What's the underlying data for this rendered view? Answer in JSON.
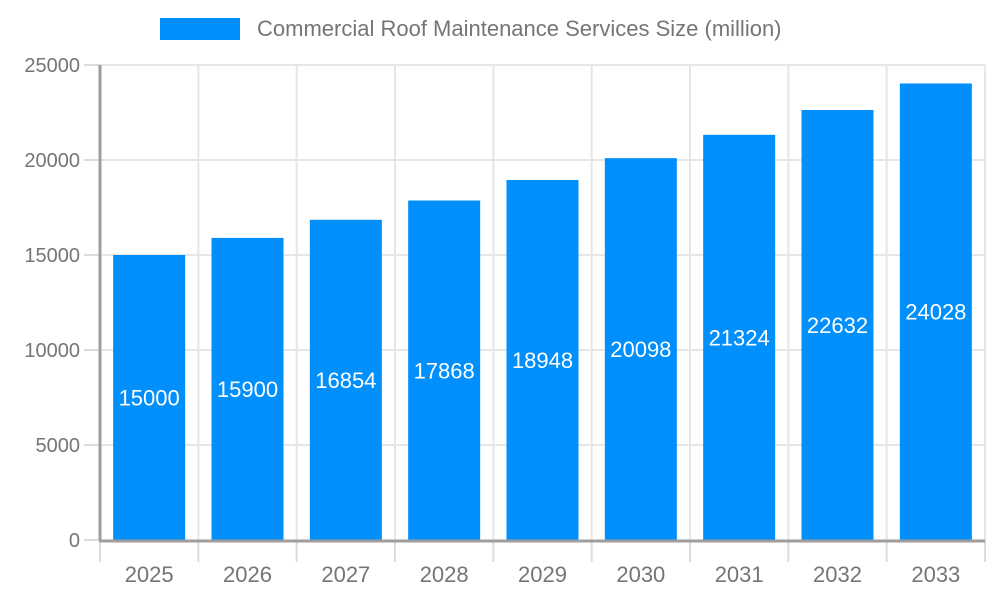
{
  "chart_data": {
    "type": "bar",
    "title": "Commercial Roof Maintenance Services Size (million)",
    "xlabel": "",
    "ylabel": "",
    "categories": [
      "2025",
      "2026",
      "2027",
      "2028",
      "2029",
      "2030",
      "2031",
      "2032",
      "2033"
    ],
    "series": [
      {
        "name": "Commercial Roof Maintenance Services Size (million)",
        "values": [
          15000,
          15900,
          16854,
          17868,
          18948,
          20098,
          21324,
          22632,
          24028
        ]
      }
    ],
    "bar_value_labels": [
      "15000",
      "15900",
      "16854",
      "17868",
      "18948",
      "20098",
      "21324",
      "22632",
      "24028"
    ],
    "ylim": [
      0,
      25000
    ],
    "yticks": [
      0,
      5000,
      10000,
      15000,
      20000,
      25000
    ],
    "ytick_labels": [
      "0",
      "5000",
      "10000",
      "15000",
      "20000",
      "25000"
    ],
    "grid": true,
    "legend_position": "top",
    "colors": {
      "bar": "#008FFB",
      "bar_label_text": "#ffffff",
      "axis_line": "#9e9e9e",
      "grid_line": "#e6e6e6",
      "tick_line": "#dcdcdc",
      "axis_text": "#757575",
      "legend_text": "#757575",
      "background": "#ffffff"
    }
  }
}
